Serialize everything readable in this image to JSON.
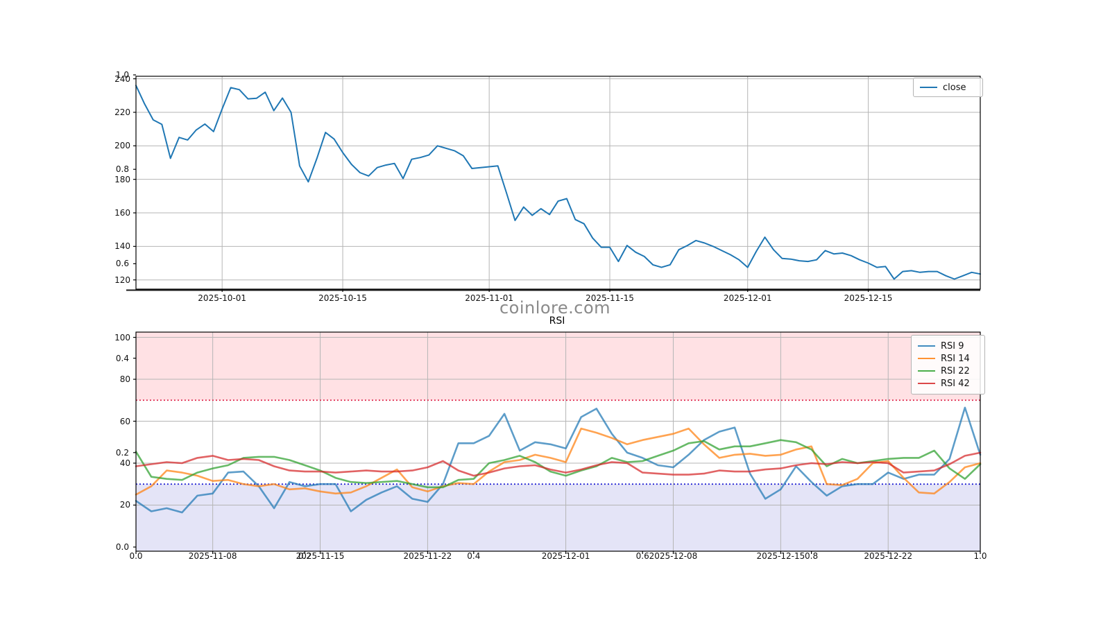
{
  "watermark": "coinlore.com",
  "colors": {
    "close_line": "#1f77b4",
    "rsi9": "#1f77b4",
    "rsi14": "#ff7f0e",
    "rsi22": "#2ca02c",
    "rsi42": "#d62728",
    "overbought_band": "#ffc8cd",
    "oversold_band": "#c9c9ef",
    "overbought_dotted": "#dc143c",
    "oversold_dotted": "#0000cd",
    "grid": "#b5b5b5",
    "watermark_gray": "#8a8a8a"
  },
  "overlay_axis": {
    "x_ticks": [
      "0.0",
      "0.2",
      "0.4",
      "0.6",
      "0.8",
      "1.0"
    ],
    "y_ticks": [
      "0.0",
      "0.2",
      "0.4",
      "0.6",
      "0.8",
      "1.0"
    ]
  },
  "chart_data": [
    {
      "type": "line",
      "title": "",
      "legend": [
        "close"
      ],
      "legend_position": "upper right",
      "grid": true,
      "start_date": "2025-09-21",
      "freq": "daily",
      "x_tick_labels": [
        "2025-10-01",
        "2025-10-15",
        "2025-11-01",
        "2025-11-15",
        "2025-12-01",
        "2025-12-15"
      ],
      "y_ticks": [
        120,
        140,
        160,
        180,
        200,
        220,
        240
      ],
      "ylim": [
        114.5,
        241.5
      ],
      "series": [
        {
          "name": "close",
          "color": "#1f77b4",
          "values": [
            236,
            225,
            215.5,
            212.8,
            192.5,
            205,
            203.5,
            209.5,
            213,
            208.5,
            222,
            234.7,
            233.5,
            228,
            228.4,
            232,
            221,
            228.5,
            220,
            188,
            178.5,
            192.5,
            208,
            204,
            196,
            189,
            184,
            182,
            187,
            188.5,
            189.5,
            180.5,
            192,
            193,
            194.5,
            200,
            198.5,
            197,
            194,
            186.5,
            187,
            187.5,
            188,
            172,
            155.5,
            163.5,
            158.5,
            162.5,
            159,
            167,
            168.5,
            156,
            153.5,
            145,
            139.5,
            139.5,
            131,
            140.5,
            136.5,
            134,
            129,
            127.5,
            129,
            138,
            140.5,
            143.5,
            142,
            140,
            137.5,
            135,
            132,
            127.5,
            137,
            145.5,
            138,
            132.8,
            132.4,
            131.4,
            131,
            132,
            137.5,
            135.5,
            136,
            134.5,
            132,
            130,
            127.5,
            128,
            120.5,
            125,
            125.5,
            124.5,
            125,
            125,
            122.5,
            120.5,
            122.5,
            124.5,
            123.5
          ]
        }
      ]
    },
    {
      "type": "line",
      "title": "RSI",
      "legend": [
        "RSI 9",
        "RSI 14",
        "RSI 22",
        "RSI 42"
      ],
      "legend_position": "upper right",
      "grid": true,
      "start_date": "2025-11-03",
      "freq": "daily",
      "x_tick_labels": [
        "2025-11-08",
        "2025-11-15",
        "2025-11-22",
        "2025-12-01",
        "2025-12-08",
        "2025-12-15",
        "2025-12-22"
      ],
      "y_ticks": [
        20,
        40,
        60,
        80,
        100
      ],
      "ylim": [
        -2,
        102.5
      ],
      "overbought_level": 70,
      "oversold_level": 30,
      "bands": [
        {
          "name": "overbought",
          "from": 70,
          "to": 100
        },
        {
          "name": "oversold",
          "from": 0,
          "to": 30
        }
      ],
      "series": [
        {
          "name": "RSI 9",
          "color": "#1f77b4",
          "values": [
            22,
            17,
            18.5,
            16.5,
            24.5,
            25.5,
            35.5,
            36,
            29,
            18.5,
            31,
            29,
            30,
            30,
            17,
            22.5,
            26,
            29,
            23,
            21.5,
            30,
            49.5,
            49.5,
            53,
            63.5,
            46,
            50,
            49,
            47,
            62,
            66,
            54,
            45,
            42.5,
            39,
            38,
            44,
            51,
            55,
            57,
            35,
            23,
            27.5,
            38.5,
            31,
            24.5,
            29,
            30,
            30,
            35.5,
            32.5,
            34.5,
            34.5,
            42,
            66.5,
            44
          ]
        },
        {
          "name": "RSI 14",
          "color": "#ff7f0e",
          "values": [
            25,
            29,
            36.5,
            35.5,
            34,
            31.5,
            32,
            30,
            29,
            30,
            27.5,
            28,
            26.5,
            25.5,
            26,
            29,
            33,
            37,
            28.5,
            26.5,
            29,
            30.5,
            30,
            36,
            40.5,
            41.5,
            44,
            42.5,
            40.5,
            56.5,
            54.5,
            52,
            49,
            51,
            52.5,
            54,
            56.5,
            49,
            42.5,
            44,
            44.5,
            43.5,
            44,
            46.5,
            48,
            30,
            29.5,
            32.5,
            40,
            41,
            33,
            26,
            25.5,
            31,
            38,
            40
          ]
        },
        {
          "name": "RSI 22",
          "color": "#2ca02c",
          "values": [
            45.5,
            33.5,
            32.5,
            32,
            35.5,
            37.5,
            39,
            42.5,
            43,
            43,
            41.5,
            39,
            36.5,
            33,
            31,
            30.5,
            31,
            31.5,
            30,
            28.5,
            28.5,
            32,
            32.5,
            40,
            41.5,
            43.5,
            40.5,
            36,
            34,
            36.5,
            38.5,
            42.5,
            40.5,
            41,
            43.5,
            46,
            49.5,
            50.5,
            46.5,
            48,
            48,
            49.5,
            51,
            50,
            46.5,
            38.5,
            42,
            40,
            41,
            42,
            42.5,
            42.5,
            46,
            37.5,
            32.5,
            39.5
          ]
        },
        {
          "name": "RSI 42",
          "color": "#d62728",
          "values": [
            38.5,
            39.5,
            40.5,
            40,
            42.5,
            43.5,
            41.5,
            42,
            41.5,
            38.5,
            36.5,
            36,
            36,
            35.5,
            36,
            36.5,
            36,
            36,
            36.5,
            38,
            41,
            36.5,
            34,
            35.5,
            37.5,
            38.5,
            39,
            37,
            35.5,
            37,
            39,
            40.5,
            40,
            35.5,
            35,
            34.5,
            34.5,
            35,
            36.5,
            36,
            36,
            37,
            37.5,
            39,
            40,
            39.5,
            40.5,
            40,
            40.5,
            40,
            35.5,
            36,
            36.5,
            39.5,
            43.5,
            45
          ]
        }
      ]
    }
  ]
}
